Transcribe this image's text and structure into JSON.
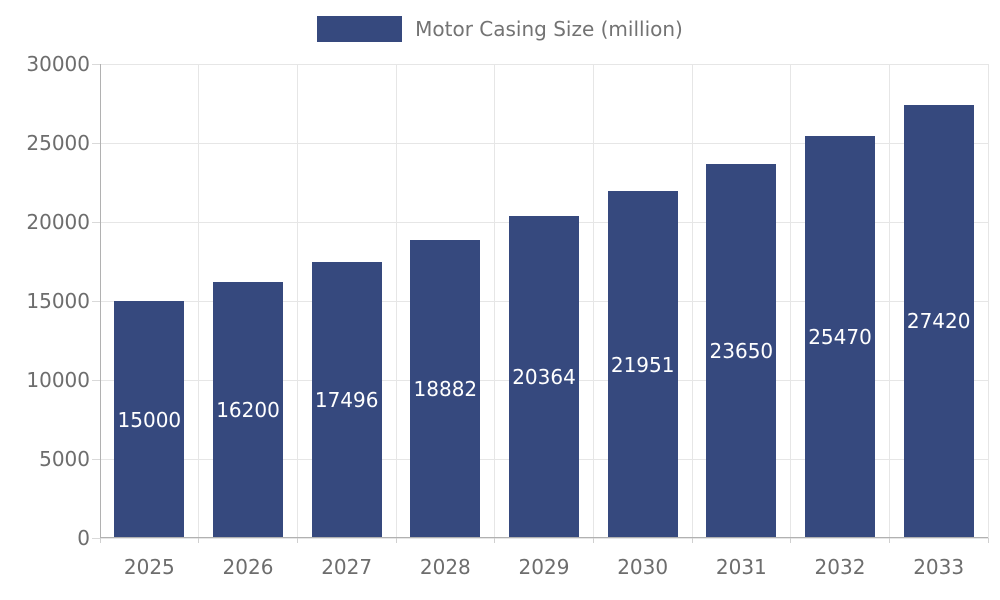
{
  "legend": {
    "label": "Motor Casing Size (million)"
  },
  "chart_data": {
    "type": "bar",
    "title": "Motor Casing Size (million)",
    "categories": [
      "2025",
      "2026",
      "2027",
      "2028",
      "2029",
      "2030",
      "2031",
      "2032",
      "2033"
    ],
    "values": [
      15000,
      16200,
      17496,
      18882,
      20364,
      21951,
      23650,
      25470,
      27420
    ],
    "xlabel": "",
    "ylabel": "",
    "ylim": [
      0,
      30000
    ],
    "yticks": [
      0,
      5000,
      10000,
      15000,
      20000,
      25000,
      30000
    ],
    "grid": true,
    "legend_position": "top",
    "bar_color": "#36497E",
    "grid_color": "#e6e6e6",
    "axis_color": "#b1b1b1",
    "tick_label_color": "#6d6d6d",
    "bar_label_color": "#ffffff",
    "background_color": "#ffffff"
  }
}
